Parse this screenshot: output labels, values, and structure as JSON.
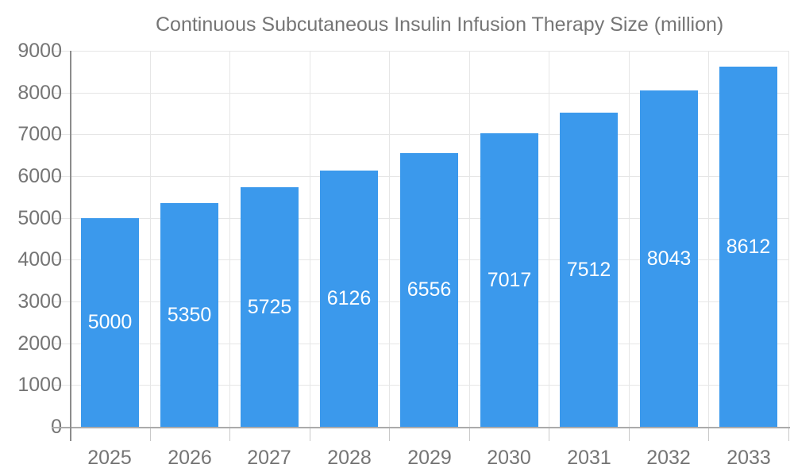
{
  "chart_data": {
    "type": "bar",
    "title": "Continuous Subcutaneous Insulin Infusion Therapy Size (million)",
    "categories": [
      "2025",
      "2026",
      "2027",
      "2028",
      "2029",
      "2030",
      "2031",
      "2032",
      "2033"
    ],
    "values": [
      5000,
      5350,
      5725,
      6126,
      6556,
      7017,
      7512,
      8043,
      8612
    ],
    "xlabel": "",
    "ylabel": "",
    "ylim": [
      0,
      9000
    ],
    "yticks": [
      0,
      1000,
      2000,
      3000,
      4000,
      5000,
      6000,
      7000,
      8000,
      9000
    ],
    "grid": true,
    "value_labels_shown": true,
    "legend_position": "top-left",
    "colors": {
      "bar": "#3B99EC",
      "axis_text": "#757575",
      "value_label": "#FFFFFF",
      "grid": "#E6E6E6",
      "y_axis_line": "#8C8C8C",
      "x_axis_line": "#ABABAB",
      "tick": "#C9C9C9"
    }
  }
}
